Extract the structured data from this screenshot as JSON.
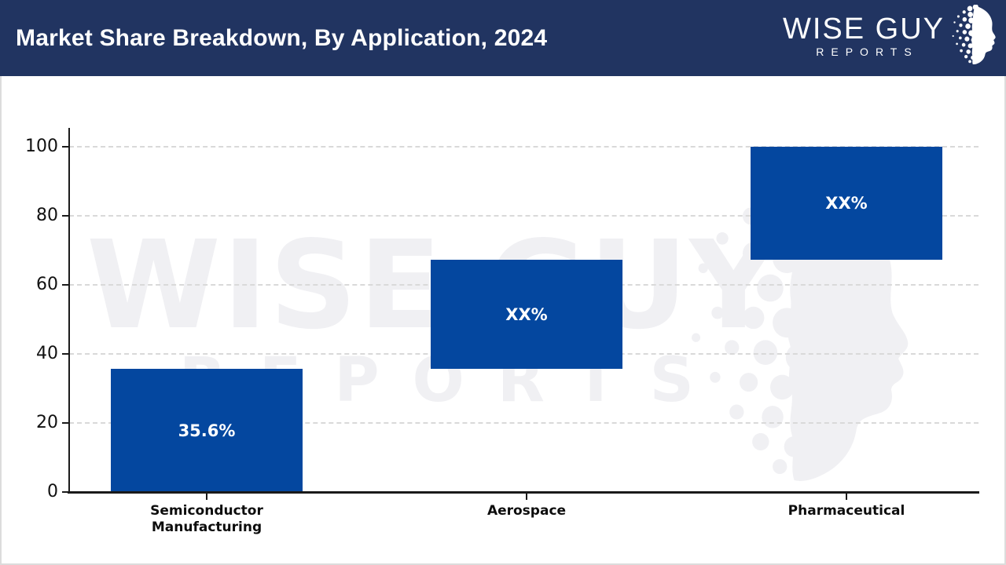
{
  "header": {
    "title": "Market Share Breakdown, By Application, 2024",
    "logo": {
      "brand": "WISE GUY",
      "brand_sub": "REPORTS"
    }
  },
  "watermark": {
    "brand": "WISE GUY",
    "brand_sub": "REPORTS"
  },
  "chart_data": {
    "type": "bar",
    "subtype": "waterfall",
    "title": "Market Share Breakdown, By Application, 2024",
    "categories": [
      "Semiconductor Manufacturing",
      "Aerospace",
      "Pharmaceutical"
    ],
    "category_lines": [
      [
        "Semiconductor",
        "Manufacturing"
      ],
      [
        "Aerospace"
      ],
      [
        "Pharmaceutical"
      ]
    ],
    "bars": [
      {
        "category": "Semiconductor Manufacturing",
        "start": 0,
        "end": 35.6,
        "value": 35.6,
        "label": "35.6%"
      },
      {
        "category": "Aerospace",
        "start": 35.6,
        "end": 67.2,
        "value": 31.6,
        "label": "XX%"
      },
      {
        "category": "Pharmaceutical",
        "start": 67.2,
        "end": 100,
        "value": 32.8,
        "label": "XX%"
      }
    ],
    "xlabel": "",
    "ylabel": "",
    "ylim": [
      0,
      100
    ],
    "yticks": [
      0,
      20,
      40,
      60,
      80,
      100
    ],
    "grid": "horizontal-dashed",
    "legend": "none",
    "colors": {
      "header_bg": "#213461",
      "bar": "#04479f",
      "grid": "#d9d9d9",
      "axis": "#1a1a1a",
      "watermark": "#f0f0f3",
      "title_text": "#ffffff"
    }
  }
}
